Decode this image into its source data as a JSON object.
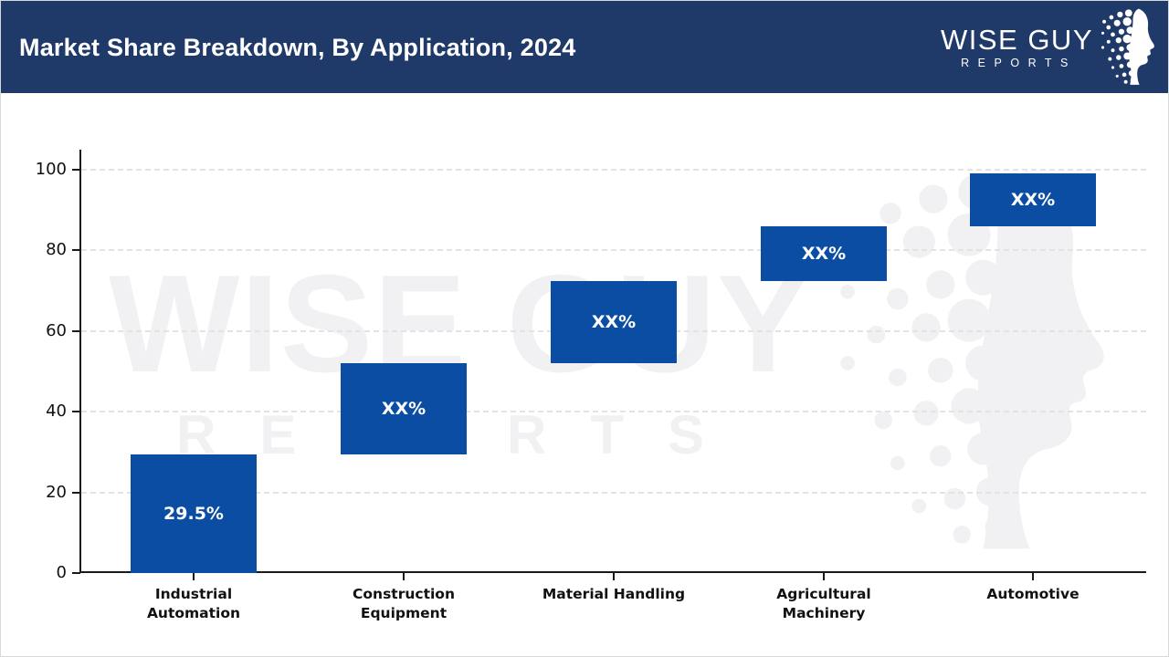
{
  "header": {
    "title": "Market Share Breakdown, By Application, 2024",
    "logo": {
      "wordmark": "WISE GUY",
      "subtext": "REPORTS"
    }
  },
  "watermark": {
    "wordmark": "WISE GUY",
    "subtext": "REPORTS"
  },
  "colors": {
    "header_bg": "#1f3a68",
    "bar": "#0b4da2",
    "axis": "#1a1a1a",
    "grid": "#e3e3e3",
    "tick_label": "#111111",
    "value_label": "#ffffff",
    "watermark": "#f1f1f3",
    "page_border": "#d8d8d8"
  },
  "chart_data": {
    "type": "bar",
    "subtype": "waterfall",
    "title": "Market Share Breakdown, By Application, 2024",
    "categories": [
      "Industrial\nAutomation",
      "Construction\nEquipment",
      "Material Handling",
      "Agricultural\nMachinery",
      "Automotive"
    ],
    "segments": [
      {
        "category": "Industrial Automation",
        "start": 0,
        "end": 29.5,
        "label": "29.5%"
      },
      {
        "category": "Construction Equipment",
        "start": 29.5,
        "end": 52,
        "label": "XX%"
      },
      {
        "category": "Material Handling",
        "start": 52,
        "end": 72.5,
        "label": "XX%"
      },
      {
        "category": "Agricultural Machinery",
        "start": 72.5,
        "end": 86,
        "label": "XX%"
      },
      {
        "category": "Automotive",
        "start": 86,
        "end": 99,
        "label": "XX%"
      }
    ],
    "xlabel": "",
    "ylabel": "",
    "ylim": [
      0,
      100
    ],
    "yticks": [
      0,
      20,
      40,
      60,
      80,
      100
    ],
    "grid": "horizontal-dashed",
    "legend": null,
    "bar_color": "#0b4da2",
    "value_label_color": "#ffffff"
  }
}
